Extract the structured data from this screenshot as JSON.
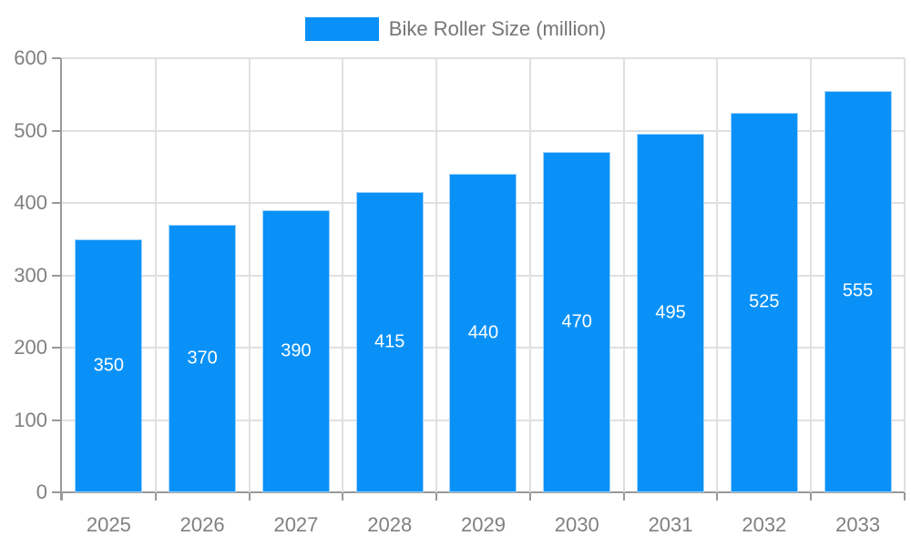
{
  "chart_data": {
    "type": "bar",
    "legend": "Bike Roller Size (million)",
    "categories": [
      "2025",
      "2026",
      "2027",
      "2028",
      "2029",
      "2030",
      "2031",
      "2032",
      "2033"
    ],
    "values": [
      350,
      370,
      390,
      415,
      440,
      470,
      495,
      525,
      555
    ],
    "value_labels": [
      "350",
      "370",
      "390",
      "415",
      "440",
      "470",
      "495",
      "525",
      "555"
    ],
    "ylim": [
      0,
      600
    ],
    "ytick_step": 100,
    "ytick_labels": [
      "0",
      "100",
      "200",
      "300",
      "400",
      "500",
      "600"
    ],
    "grid": true,
    "legend_position": "top",
    "bar_label_position": "center",
    "colors": {
      "bar": "#0991f8",
      "bar_border": "#9ed2fb",
      "bar_label": "#ffffff",
      "axis": "#999999",
      "grid": "#e0e0e0",
      "tick_text": "#808080",
      "legend_text": "#757575",
      "background": "#ffffff"
    }
  }
}
